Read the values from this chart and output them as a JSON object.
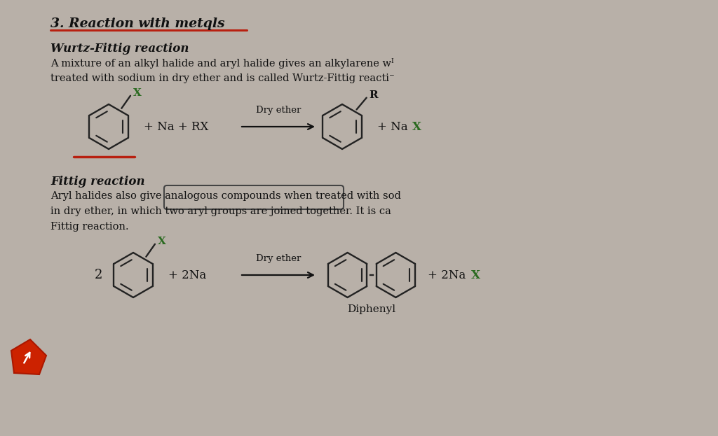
{
  "background_color": "#b8b0a8",
  "title": "3. Reaction with metqls",
  "subtitle": "Wurtz-Fittig reaction",
  "body_text_1": "A mixture of an alkyl halide and aryl halide gives an alkylarene wᴵ",
  "body_text_2": "treated with sodium in dry ether and is called Wurtz-Fittig reacti⁻",
  "section2_title": "Fittig reaction",
  "section2_body_1": "Aryl halides also give analogous compounds when treated with sod",
  "section2_body_2": "in dry ether, in which two aryl groups are joined together. It is ca",
  "section2_body_3": "Fittig reaction.",
  "reaction2_label": "Diphenyl",
  "text_color": "#111111",
  "red_underline_color": "#b82010",
  "green_x_color": "#2a6a20",
  "box_color": "#444444",
  "ring_color": "#222222",
  "arrow_color": "#111111"
}
